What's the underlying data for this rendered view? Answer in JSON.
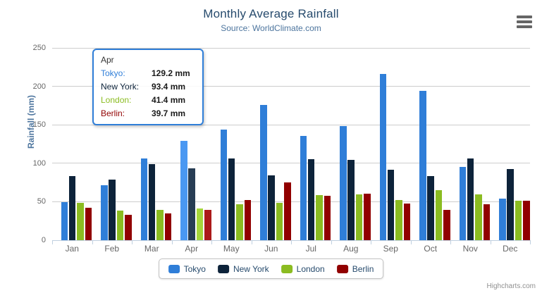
{
  "header": {
    "title": "Monthly Average Rainfall",
    "subtitle": "Source: WorldClimate.com"
  },
  "credits": "Highcharts.com",
  "icons": {
    "context_menu": "hamburger-menu"
  },
  "chart_data": {
    "type": "bar",
    "title": "Monthly Average Rainfall",
    "subtitle": "Source: WorldClimate.com",
    "categories": [
      "Jan",
      "Feb",
      "Mar",
      "Apr",
      "May",
      "Jun",
      "Jul",
      "Aug",
      "Sep",
      "Oct",
      "Nov",
      "Dec"
    ],
    "series": [
      {
        "name": "Tokyo",
        "color": "#2f7ed8",
        "hover_color": "#4a98f2",
        "values": [
          49.9,
          71.5,
          106.4,
          129.2,
          144.0,
          176.0,
          135.6,
          148.5,
          216.4,
          194.1,
          95.6,
          54.4
        ]
      },
      {
        "name": "New York",
        "color": "#0d233a",
        "hover_color": "#273d54",
        "values": [
          83.6,
          78.8,
          98.5,
          93.4,
          106.0,
          84.5,
          105.0,
          104.3,
          91.2,
          83.5,
          106.6,
          92.3
        ]
      },
      {
        "name": "London",
        "color": "#8bbc21",
        "hover_color": "#a5d63b",
        "values": [
          48.9,
          38.8,
          39.3,
          41.4,
          47.0,
          48.3,
          59.0,
          59.6,
          52.4,
          65.2,
          59.3,
          51.2
        ]
      },
      {
        "name": "Berlin",
        "color": "#910000",
        "hover_color": "#ab1a1a",
        "values": [
          42.4,
          33.2,
          34.5,
          39.7,
          52.6,
          75.5,
          57.4,
          60.4,
          47.6,
          39.1,
          46.8,
          51.1
        ]
      }
    ],
    "xlabel": "",
    "ylabel": "Rainfall (mm)",
    "ylim": [
      0,
      250
    ],
    "ytick_interval": 50,
    "grid": true,
    "legend_position": "bottom-center",
    "hovered_category": "Apr",
    "hovered_category_index": 3
  },
  "tooltip": {
    "header": "Apr",
    "rows": [
      {
        "name": "Tokyo:",
        "value": "129.2 mm",
        "color": "#2f7ed8"
      },
      {
        "name": "New York:",
        "value": "93.4 mm",
        "color": "#0d233a"
      },
      {
        "name": "London:",
        "value": "41.4 mm",
        "color": "#8bbc21"
      },
      {
        "name": "Berlin:",
        "value": "39.7 mm",
        "color": "#910000"
      }
    ]
  }
}
